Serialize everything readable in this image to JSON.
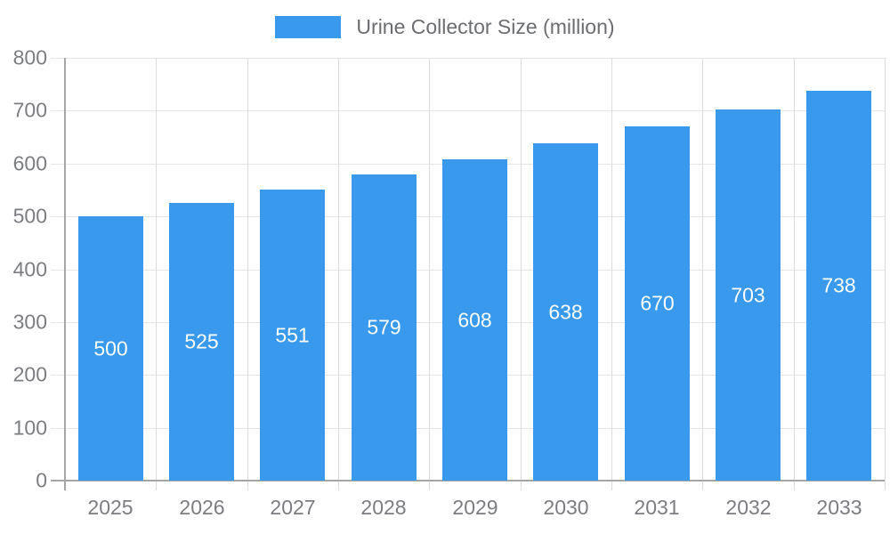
{
  "legend": {
    "label": "Urine Collector Size (million)"
  },
  "colors": {
    "bar": "#3999ec",
    "axis": "#a6a6a6",
    "h_gridline": "#e6e6e6",
    "v_gridline": "#dcdcdc",
    "tick_text": "#7b7d80",
    "legend_text": "#6b6d70",
    "bar_value_text": "#ffffff"
  },
  "chart_data": {
    "type": "bar",
    "title": "",
    "categories": [
      "2025",
      "2026",
      "2027",
      "2028",
      "2029",
      "2030",
      "2031",
      "2032",
      "2033"
    ],
    "series": [
      {
        "name": "Urine Collector Size (million)",
        "values": [
          500,
          525,
          551,
          579,
          608,
          638,
          670,
          703,
          738
        ]
      }
    ],
    "xlabel": "",
    "ylabel": "",
    "ylim": [
      0,
      800
    ],
    "ytick_step": 100,
    "grid": true,
    "legend_position": "top",
    "bar_labels_shown": true,
    "bar_label_position": "middle"
  }
}
